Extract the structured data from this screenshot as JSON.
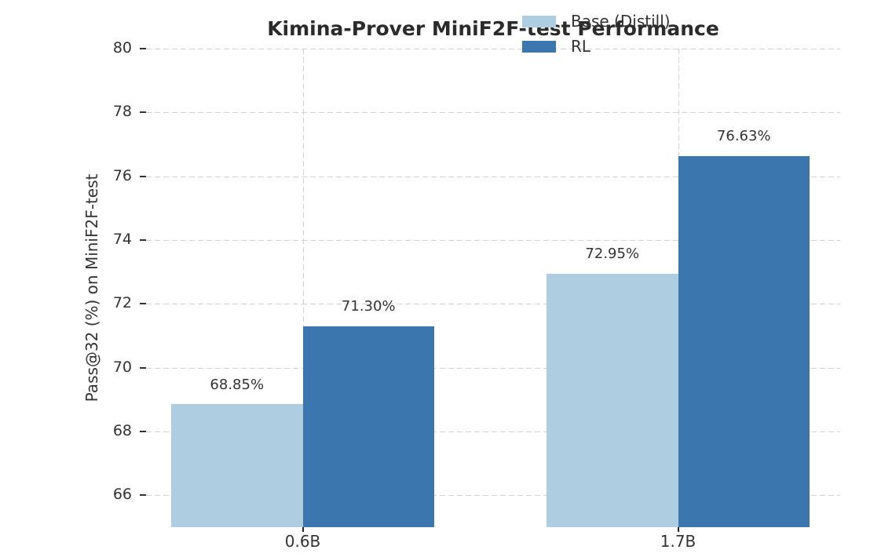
{
  "chart_data": {
    "type": "bar",
    "title": "Kimina-Prover MiniF2F-test Performance",
    "ylabel": "Pass@32 (%) on MiniF2F-test",
    "xlabel": "",
    "categories": [
      "0.6B",
      "1.7B"
    ],
    "series": [
      {
        "name": "Base (Distill)",
        "color": "#aecde1",
        "values": [
          68.85,
          72.95
        ],
        "labels": [
          "68.85%",
          "72.95%"
        ]
      },
      {
        "name": "RL",
        "color": "#3b76ae",
        "values": [
          71.3,
          76.63
        ],
        "labels": [
          "71.30%",
          "76.63%"
        ]
      }
    ],
    "ylim": [
      65,
      80
    ],
    "yticks": [
      66,
      68,
      70,
      72,
      74,
      76,
      78,
      80
    ],
    "grid": true,
    "grid_style": "dashed",
    "legend_position": "upper right",
    "text_color": "#333333",
    "grid_color": "#d2d2d2"
  }
}
